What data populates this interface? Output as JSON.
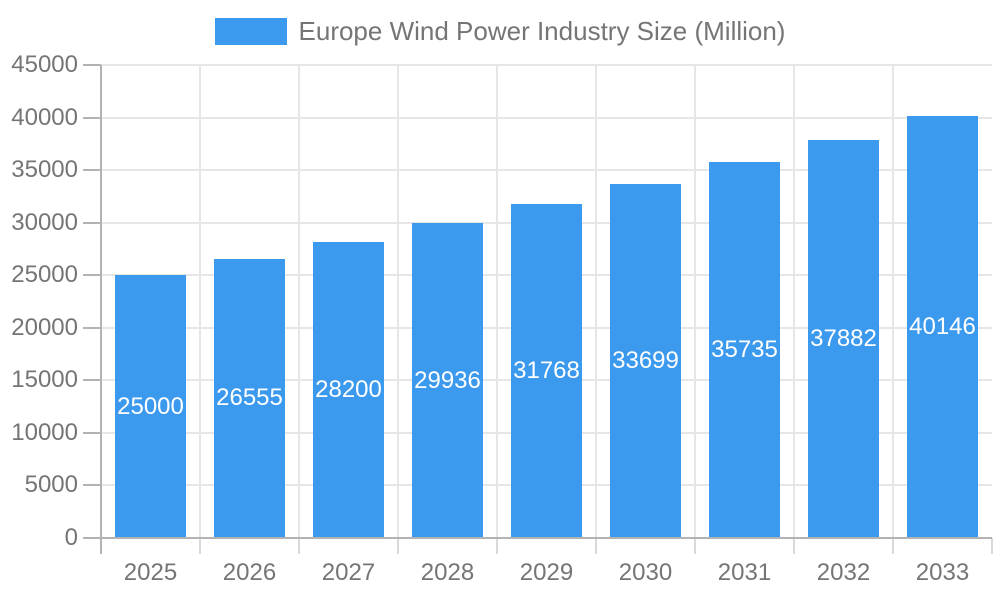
{
  "legend": {
    "label": "Europe Wind Power Industry Size (Million)"
  },
  "chart_data": {
    "type": "bar",
    "title": "Europe Wind Power Industry Size (Million)",
    "categories": [
      "2025",
      "2026",
      "2027",
      "2028",
      "2029",
      "2030",
      "2031",
      "2032",
      "2033"
    ],
    "series": [
      {
        "name": "Europe Wind Power Industry Size (Million)",
        "values": [
          25000,
          26555,
          28200,
          29936,
          31768,
          33699,
          35735,
          37882,
          40146
        ],
        "value_labels": [
          "25000",
          "26555",
          "28200",
          "29936",
          "31768",
          "33699",
          "35735",
          "37882",
          "40146"
        ],
        "color": "#3b99ee"
      }
    ],
    "xlabel": "",
    "ylabel": "",
    "ylim": [
      0,
      45000
    ],
    "yticks": [
      0,
      5000,
      10000,
      15000,
      20000,
      25000,
      30000,
      35000,
      40000,
      45000
    ],
    "grid": true,
    "legend_position": "top",
    "value_label_position": "center",
    "value_label_color": "#ffffff"
  },
  "colors": {
    "bar": "#3b99ee",
    "grid_line": "#e6e6e6",
    "axis_line": "#b3b3b3",
    "minor_tick": "#d9d9d9",
    "axis_text": "#757575",
    "legend_text": "#757575",
    "value_label": "#ffffff",
    "background": "#ffffff"
  }
}
